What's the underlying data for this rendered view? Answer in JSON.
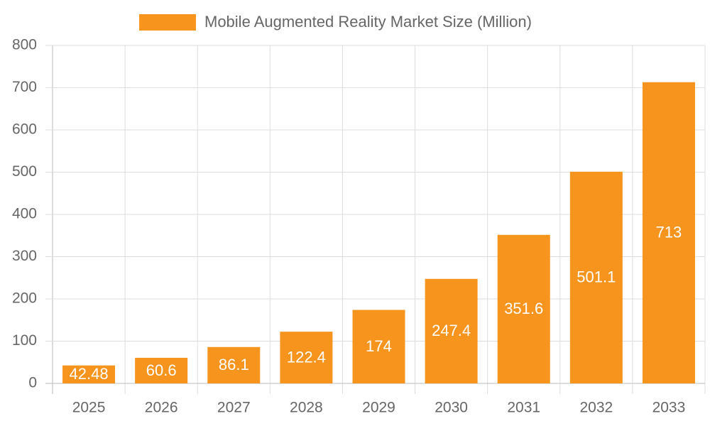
{
  "chart_data": {
    "type": "bar",
    "categories": [
      "2025",
      "2026",
      "2027",
      "2028",
      "2029",
      "2030",
      "2031",
      "2032",
      "2033"
    ],
    "series": [
      {
        "name": "Mobile Augmented Reality Market Size (Million)",
        "color": "#f7941d",
        "values": [
          42.48,
          60.6,
          86.1,
          122.4,
          174,
          247.4,
          351.6,
          501.1,
          713
        ]
      }
    ],
    "ylim": [
      0,
      800
    ],
    "yticks": [
      0,
      100,
      200,
      300,
      400,
      500,
      600,
      700,
      800
    ],
    "grid": true,
    "legend": "top"
  }
}
